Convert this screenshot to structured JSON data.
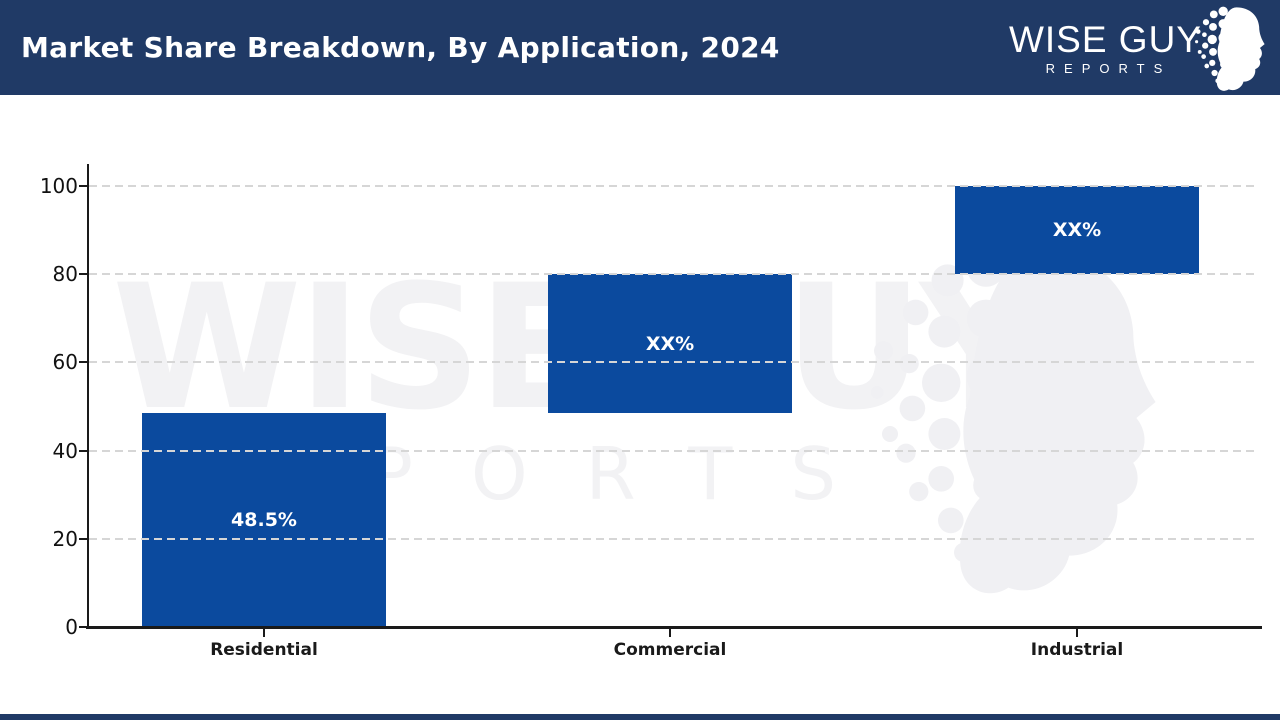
{
  "header": {
    "title": "Market Share Breakdown, By Application, 2024",
    "logo": {
      "wordmark": "WISE GUY",
      "subtext": "REPORTS"
    }
  },
  "watermark": {
    "line1": "WISE GUY",
    "line2": "REPORTS"
  },
  "colors": {
    "header_bg": "#203a66",
    "footer_bg": "#203a66",
    "bar": "#0b4a9e",
    "grid": "#d6d6d6",
    "axis": "#1a1a1a",
    "tick_text": "#111111",
    "bar_label_text": "#ffffff",
    "watermark_text": "#f2f2f4",
    "background": "#ffffff"
  },
  "chart_data": {
    "type": "bar",
    "variant": "floating-range stacked breakdown (waterfall-style)",
    "title": "Market Share Breakdown, By Application, 2024",
    "categories": [
      "Residential",
      "Commercial",
      "Industrial"
    ],
    "series": [
      {
        "name": "Market share (%)",
        "ranges": [
          [
            0,
            48.5
          ],
          [
            48.5,
            80
          ],
          [
            80,
            100
          ]
        ],
        "segment_sizes": [
          48.5,
          31.5,
          20
        ]
      }
    ],
    "bar_labels": [
      "48.5%",
      "XX%",
      "XX%"
    ],
    "xlabel": "",
    "ylabel": "",
    "ylim": [
      0,
      105
    ],
    "yticks": [
      0,
      20,
      40,
      60,
      80,
      100
    ],
    "ytick_labels": [
      "0",
      "20",
      "40",
      "60",
      "80",
      "100"
    ],
    "grid": {
      "horizontal": true,
      "style": "dashed",
      "drawn_above_bars": true
    },
    "legend": "none"
  }
}
